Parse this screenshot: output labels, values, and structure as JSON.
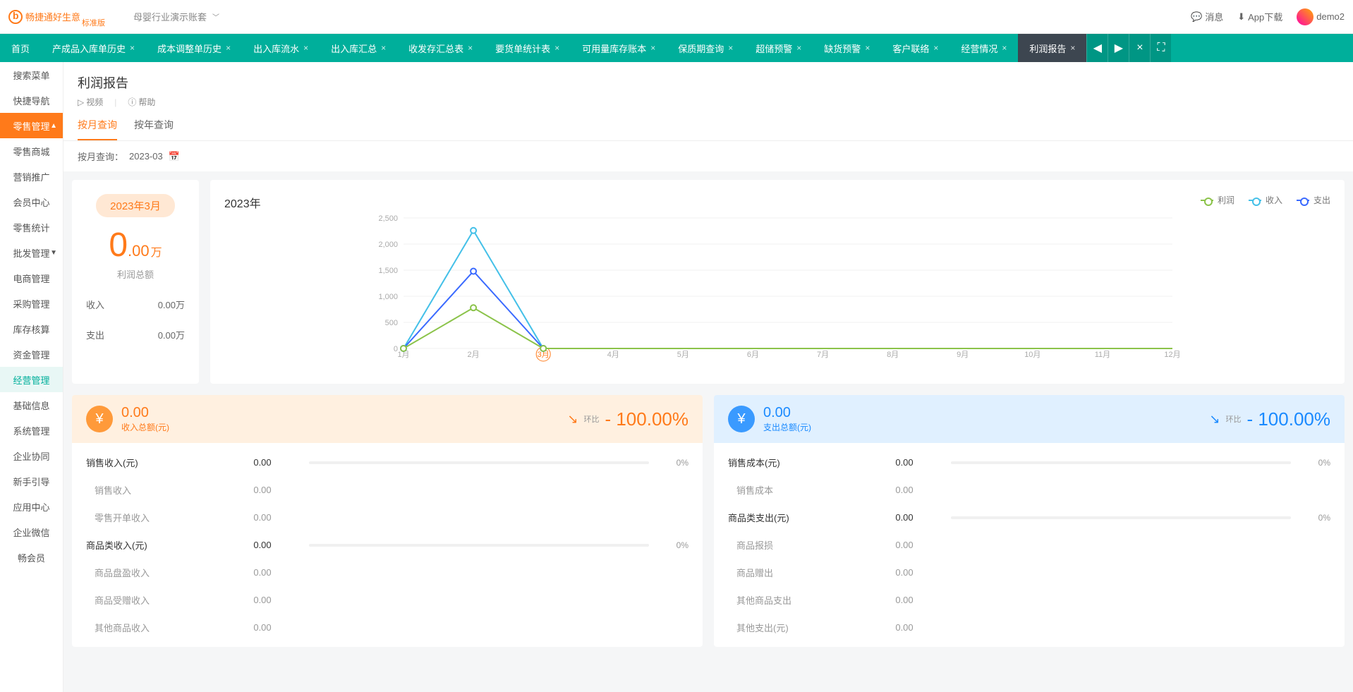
{
  "header": {
    "logo_text": "畅捷通好生意",
    "logo_sub": "标准版",
    "account": "母婴行业演示账套",
    "msg": "消息",
    "app_dl": "App下载",
    "user": "demo2"
  },
  "tabs": [
    {
      "label": "首页",
      "close": false
    },
    {
      "label": "产成品入库单历史",
      "close": true
    },
    {
      "label": "成本调整单历史",
      "close": true
    },
    {
      "label": "出入库流水",
      "close": true
    },
    {
      "label": "出入库汇总",
      "close": true
    },
    {
      "label": "收发存汇总表",
      "close": true
    },
    {
      "label": "要货单统计表",
      "close": true
    },
    {
      "label": "可用量库存账本",
      "close": true
    },
    {
      "label": "保质期查询",
      "close": true
    },
    {
      "label": "超储预警",
      "close": true
    },
    {
      "label": "缺货预警",
      "close": true
    },
    {
      "label": "客户联络",
      "close": true
    },
    {
      "label": "经营情况",
      "close": true
    },
    {
      "label": "利润报告",
      "close": true,
      "active": true
    }
  ],
  "sidebar": [
    {
      "label": "搜索菜单"
    },
    {
      "label": "快捷导航"
    },
    {
      "label": "零售管理",
      "orange": true,
      "chev": "▲"
    },
    {
      "label": "零售商城"
    },
    {
      "label": "营销推广"
    },
    {
      "label": "会员中心"
    },
    {
      "label": "零售统计"
    },
    {
      "label": "批发管理",
      "chev": "▼"
    },
    {
      "label": "电商管理"
    },
    {
      "label": "采购管理"
    },
    {
      "label": "库存核算"
    },
    {
      "label": "资金管理"
    },
    {
      "label": "经营管理",
      "active": true
    },
    {
      "label": "基础信息"
    },
    {
      "label": "系统管理"
    },
    {
      "label": "企业协同"
    },
    {
      "label": "新手引导"
    },
    {
      "label": "应用中心"
    },
    {
      "label": "企业微信"
    },
    {
      "label": "畅会员"
    }
  ],
  "page": {
    "title": "利润报告",
    "link_video": "视频",
    "link_help": "帮助",
    "subtab_month": "按月查询",
    "subtab_year": "按年查询",
    "filter_label": "按月查询：",
    "filter_value": "2023-03"
  },
  "summary": {
    "pill": "2023年3月",
    "big_int": "0",
    "big_dec": ".00",
    "big_unit": "万",
    "sub": "利润总额",
    "income_label": "收入",
    "income_val": "0.00万",
    "expense_label": "支出",
    "expense_val": "0.00万"
  },
  "chart": {
    "title": "2023年",
    "legend_profit": "利润",
    "legend_income": "收入",
    "legend_expense": "支出",
    "color_profit": "#8bc34a",
    "color_income": "#44c0e8",
    "color_expense": "#3a6aff",
    "y_ticks": [
      "2,500",
      "2,000",
      "1,500",
      "1,000",
      "500",
      "0"
    ],
    "x_ticks": [
      "1月",
      "2月",
      "3月",
      "4月",
      "5月",
      "6月",
      "7月",
      "8月",
      "9月",
      "10月",
      "11月",
      "12月"
    ],
    "active_x": 2,
    "series": {
      "profit": [
        0,
        780,
        0,
        0,
        0,
        0,
        0,
        0,
        0,
        0,
        0,
        0
      ],
      "income": [
        0,
        2260,
        0,
        0,
        0,
        0,
        0,
        0,
        0,
        0,
        0,
        0
      ],
      "expense": [
        0,
        1480,
        0,
        0,
        0,
        0,
        0,
        0,
        0,
        0,
        0,
        0
      ]
    },
    "y_max": 2500
  },
  "panel_income": {
    "amount": "0.00",
    "label": "收入总额(元)",
    "hb": "环比",
    "pct": "- 100.00%",
    "rows": [
      {
        "name": "销售收入(元)",
        "val": "0.00",
        "bar": true,
        "pct": "0%"
      },
      {
        "name": "销售收入",
        "val": "0.00",
        "sub": true
      },
      {
        "name": "零售开单收入",
        "val": "0.00",
        "sub": true
      },
      {
        "name": "商品类收入(元)",
        "val": "0.00",
        "bar": true,
        "pct": "0%"
      },
      {
        "name": "商品盘盈收入",
        "val": "0.00",
        "sub": true
      },
      {
        "name": "商品受赠收入",
        "val": "0.00",
        "sub": true
      },
      {
        "name": "其他商品收入",
        "val": "0.00",
        "sub": true
      }
    ]
  },
  "panel_expense": {
    "amount": "0.00",
    "label": "支出总额(元)",
    "hb": "环比",
    "pct": "- 100.00%",
    "rows": [
      {
        "name": "销售成本(元)",
        "val": "0.00",
        "bar": true,
        "pct": "0%"
      },
      {
        "name": "销售成本",
        "val": "0.00",
        "sub": true
      },
      {
        "name": "商品类支出(元)",
        "val": "0.00",
        "bar": true,
        "pct": "0%"
      },
      {
        "name": "商品报损",
        "val": "0.00",
        "sub": true
      },
      {
        "name": "商品赠出",
        "val": "0.00",
        "sub": true
      },
      {
        "name": "其他商品支出",
        "val": "0.00",
        "sub": true
      },
      {
        "name": "其他支出(元)",
        "val": "0.00",
        "sub": true
      }
    ]
  }
}
